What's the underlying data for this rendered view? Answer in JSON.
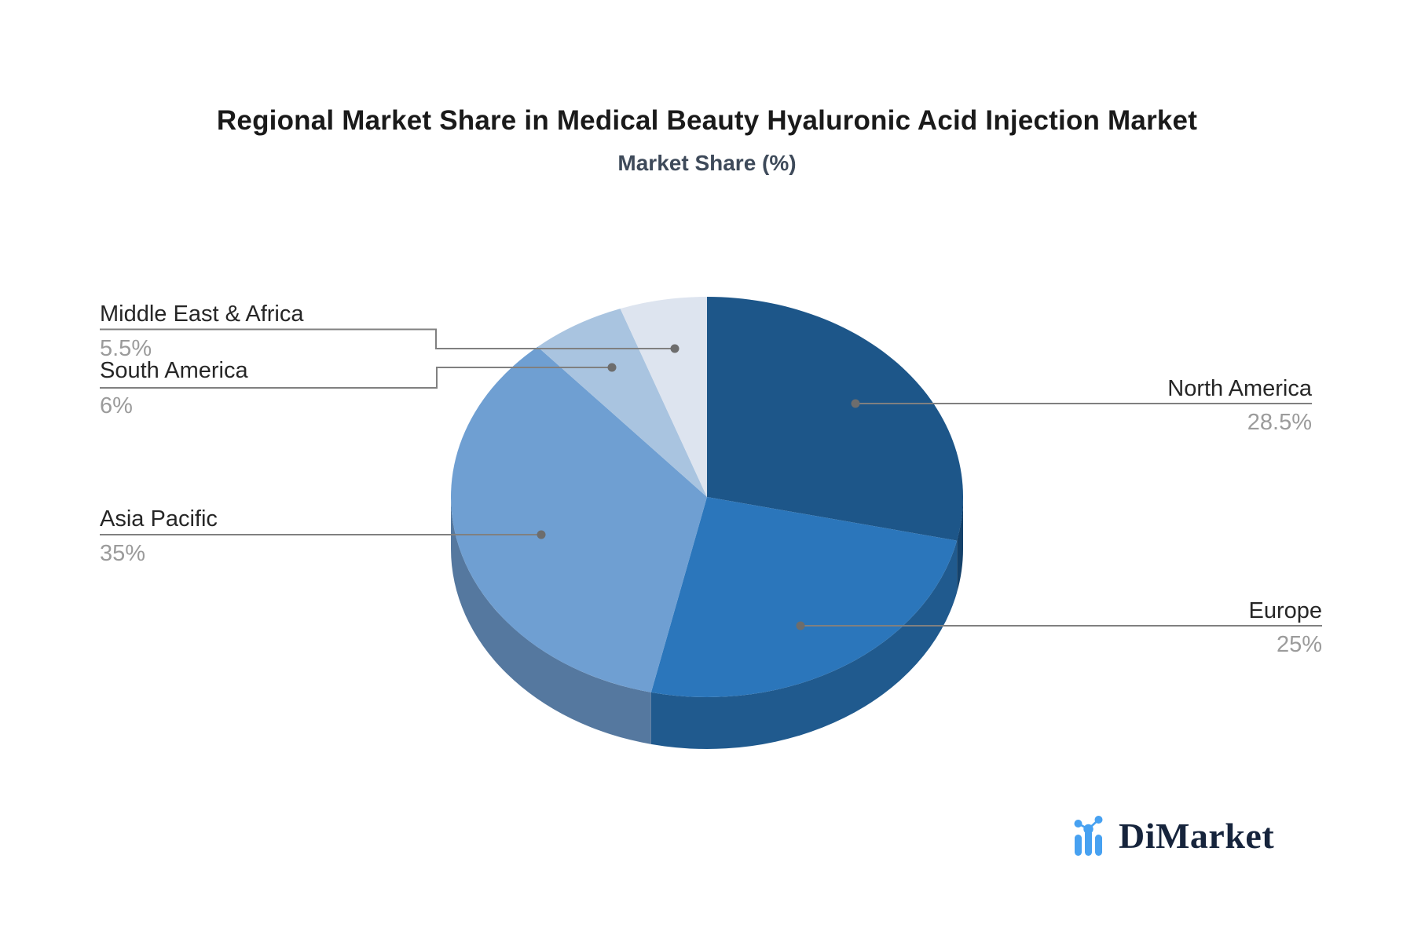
{
  "title": "Regional Market Share in Medical Beauty Hyaluronic Acid Injection Market",
  "subtitle": "Market Share (%)",
  "labels": {
    "na": {
      "name": "North America",
      "value": "28.5%"
    },
    "eu": {
      "name": "Europe",
      "value": "25%"
    },
    "ap": {
      "name": "Asia Pacific",
      "value": "35%"
    },
    "sa": {
      "name": "South America",
      "value": "6%"
    },
    "mea": {
      "name": "Middle East & Africa",
      "value": "5.5%"
    }
  },
  "logo": {
    "text": "DiMarket",
    "icon": "bar-line-chart-icon",
    "text_color": "#16243c",
    "icon_color": "#47a1f1"
  },
  "chart_data": {
    "type": "pie",
    "title": "Regional Market Share in Medical Beauty Hyaluronic Acid Injection Market",
    "subtitle": "Market Share (%)",
    "unit": "%",
    "categories": [
      "North America",
      "Europe",
      "Asia Pacific",
      "South America",
      "Middle East & Africa"
    ],
    "values": [
      28.5,
      25,
      35,
      6,
      5.5
    ],
    "value_labels": [
      "28.5%",
      "25%",
      "35%",
      "6%",
      "5.5%"
    ],
    "colors": [
      "#1d5689",
      "#2b76bb",
      "#6f9fd2",
      "#a9c4e0",
      "#dde4ef"
    ],
    "side_colors": [
      "#15426b",
      "#205a8e",
      "#55789f",
      "#7e9ab8",
      "#a8b4c9"
    ],
    "effect": "3d",
    "start_angle_deg": 0,
    "direction": "clockwise",
    "legend": "none",
    "labels_position": "outside-callouts",
    "callout_line_color": "#808080",
    "callout_dot_color": "#6d6d6d"
  }
}
